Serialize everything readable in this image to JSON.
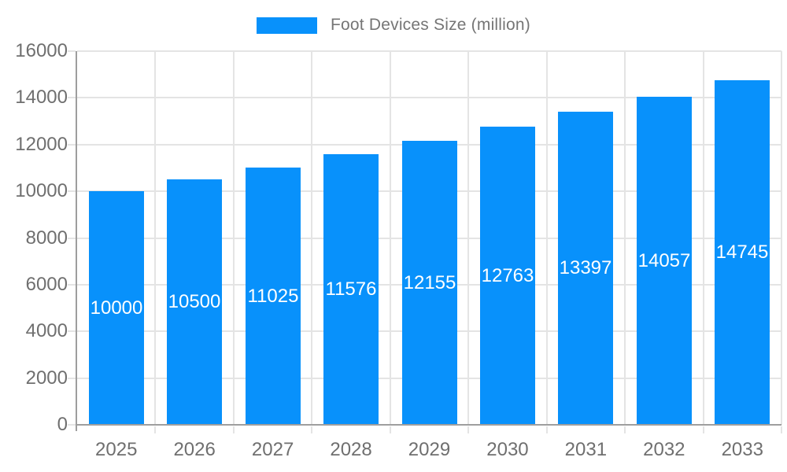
{
  "legend": {
    "label": "Foot Devices Size (million)"
  },
  "chart_data": {
    "type": "bar",
    "title": "",
    "legend_entries": [
      "Foot Devices Size (million)"
    ],
    "legend_position": "top",
    "categories": [
      "2025",
      "2026",
      "2027",
      "2028",
      "2029",
      "2030",
      "2031",
      "2032",
      "2033"
    ],
    "series": [
      {
        "name": "Foot Devices Size (million)",
        "values": [
          10000,
          10500,
          11025,
          11576,
          12155,
          12763,
          13397,
          14057,
          14745
        ]
      }
    ],
    "bar_value_labels_shown": true,
    "xlabel": "",
    "ylabel": "",
    "ylim": [
      0,
      16000
    ],
    "yticks": [
      0,
      2000,
      4000,
      6000,
      8000,
      10000,
      12000,
      14000,
      16000
    ],
    "grid": true,
    "colors": {
      "bar": "#0891fb",
      "bar_label": "#ffffff",
      "tick_label": "#6f6f6f",
      "legend_text": "#757575",
      "grid": "#e4e4e4",
      "axis_line": "#9e9e9e",
      "background": "#ffffff"
    }
  }
}
